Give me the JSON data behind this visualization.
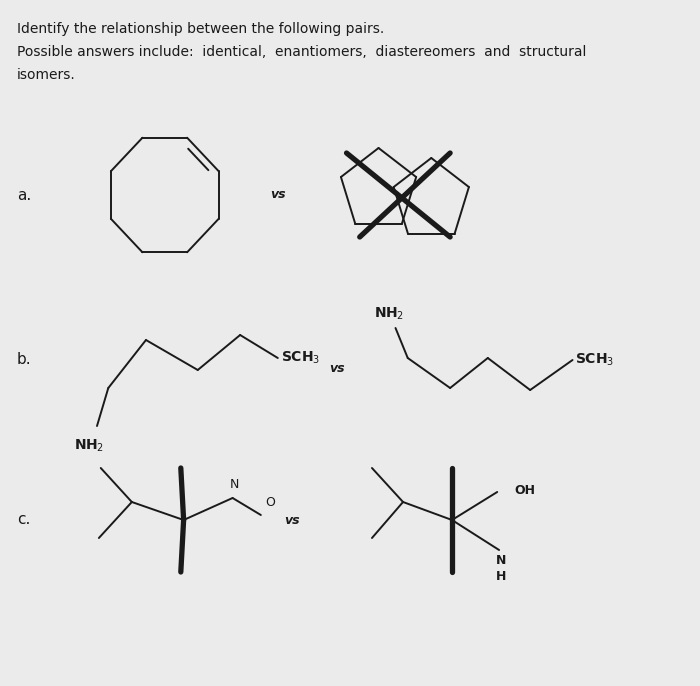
{
  "title_line1": "Identify the relationship between the following pairs.",
  "title_line2": "Possible answers include:  identical,  enantiomers,  diastereomers  and  structural",
  "title_line3": "isomers.",
  "bg_color": "#ebebeb",
  "text_color": "#1a1a1a",
  "label_a": "a.",
  "label_b": "b.",
  "label_c": "c.",
  "vs_text": "vs"
}
